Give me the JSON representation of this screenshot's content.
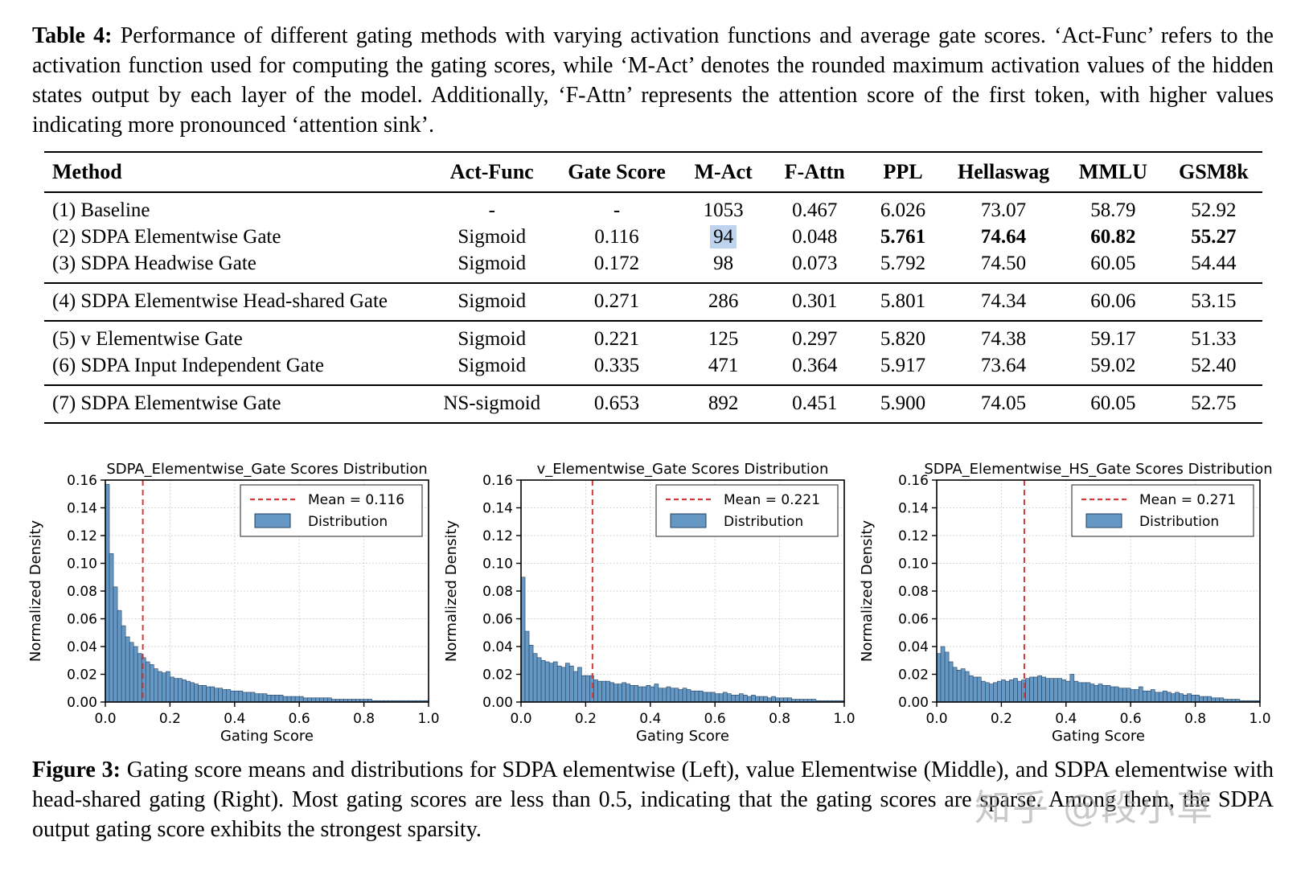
{
  "table_caption": {
    "label": "Table 4:",
    "text": " Performance of different gating methods with varying activation functions and average gate scores. ‘Act-Func’ refers to the activation function used for computing the gating scores, while ‘M-Act’ denotes the rounded maximum activation values of the hidden states output by each layer of the model. Additionally, ‘F-Attn’ represents the attention score of the first token, with higher values indicating more pronounced ‘attention sink’."
  },
  "table": {
    "headers": [
      "Method",
      "Act-Func",
      "Gate Score",
      "M-Act",
      "F-Attn",
      "PPL",
      "Hellaswag",
      "MMLU",
      "GSM8k"
    ],
    "highlight_color": "#bdd3ee",
    "groups": [
      {
        "rows": [
          {
            "cells": [
              "(1) Baseline",
              "-",
              "-",
              "1053",
              "0.467",
              "6.026",
              "73.07",
              "58.79",
              "52.92"
            ]
          },
          {
            "cells": [
              "(2) SDPA Elementwise Gate",
              "Sigmoid",
              "0.116",
              "94",
              "0.048",
              "5.761",
              "74.64",
              "60.82",
              "55.27"
            ],
            "bold": [
              5,
              6,
              7,
              8
            ],
            "highlight": [
              3
            ]
          },
          {
            "cells": [
              "(3) SDPA Headwise Gate",
              "Sigmoid",
              "0.172",
              "98",
              "0.073",
              "5.792",
              "74.50",
              "60.05",
              "54.44"
            ]
          }
        ]
      },
      {
        "rows": [
          {
            "cells": [
              "(4) SDPA Elementwise Head-shared Gate",
              "Sigmoid",
              "0.271",
              "286",
              "0.301",
              "5.801",
              "74.34",
              "60.06",
              "53.15"
            ]
          }
        ]
      },
      {
        "rows": [
          {
            "cells": [
              "(5) v Elementwise Gate",
              "Sigmoid",
              "0.221",
              "125",
              "0.297",
              "5.820",
              "74.38",
              "59.17",
              "51.33"
            ]
          },
          {
            "cells": [
              "(6) SDPA Input Independent Gate",
              "Sigmoid",
              "0.335",
              "471",
              "0.364",
              "5.917",
              "73.64",
              "59.02",
              "52.40"
            ]
          }
        ]
      },
      {
        "rows": [
          {
            "cells": [
              "(7) SDPA Elementwise Gate",
              "NS-sigmoid",
              "0.653",
              "892",
              "0.451",
              "5.900",
              "74.05",
              "60.05",
              "52.75"
            ]
          }
        ]
      }
    ]
  },
  "chart_style": {
    "bar_fill": "#6598c5",
    "bar_edge": "#23415f",
    "mean_line_color": "#d23b3b",
    "grid_color": "#c9c9c9",
    "frame_color": "#000000"
  },
  "chart_data": [
    {
      "type": "bar",
      "title": "SDPA_Elementwise_Gate Scores Distribution",
      "xlabel": "Gating Score",
      "ylabel": "Normalized Density",
      "xlim": [
        0,
        1
      ],
      "ylim": [
        0,
        0.16
      ],
      "xticks": [
        "0.0",
        "0.2",
        "0.4",
        "0.6",
        "0.8",
        "1.0"
      ],
      "yticks": [
        "0.00",
        "0.02",
        "0.04",
        "0.06",
        "0.08",
        "0.10",
        "0.12",
        "0.14",
        "0.16"
      ],
      "mean": 0.116,
      "legend": {
        "mean_label": "Mean = 0.116",
        "distribution_label": "Distribution",
        "position": "upper right"
      },
      "bin_start": 0,
      "bin_width": 0.0125,
      "values": [
        0.157,
        0.107,
        0.083,
        0.066,
        0.055,
        0.047,
        0.043,
        0.04,
        0.035,
        0.032,
        0.029,
        0.027,
        0.024,
        0.022,
        0.021,
        0.022,
        0.018,
        0.017,
        0.017,
        0.016,
        0.015,
        0.014,
        0.013,
        0.012,
        0.012,
        0.011,
        0.011,
        0.01,
        0.01,
        0.009,
        0.009,
        0.008,
        0.008,
        0.008,
        0.007,
        0.007,
        0.007,
        0.006,
        0.006,
        0.006,
        0.005,
        0.005,
        0.005,
        0.005,
        0.004,
        0.004,
        0.004,
        0.004,
        0.004,
        0.003,
        0.003,
        0.003,
        0.003,
        0.003,
        0.003,
        0.003,
        0.002,
        0.002,
        0.002,
        0.002,
        0.002,
        0.002,
        0.002,
        0.002,
        0.002,
        0.002,
        0.001,
        0.001,
        0.001,
        0.001,
        0.001,
        0.001,
        0.001,
        0.001,
        0.001,
        0.001,
        0.001,
        0.001,
        0.001,
        0.001
      ]
    },
    {
      "type": "bar",
      "title": "v_Elementwise_Gate Scores Distribution",
      "xlabel": "Gating Score",
      "ylabel": "Normalized Density",
      "xlim": [
        0,
        1
      ],
      "ylim": [
        0,
        0.16
      ],
      "xticks": [
        "0.0",
        "0.2",
        "0.4",
        "0.6",
        "0.8",
        "1.0"
      ],
      "yticks": [
        "0.00",
        "0.02",
        "0.04",
        "0.06",
        "0.08",
        "0.10",
        "0.12",
        "0.14",
        "0.16"
      ],
      "mean": 0.221,
      "legend": {
        "mean_label": "Mean = 0.221",
        "distribution_label": "Distribution",
        "position": "upper right"
      },
      "bin_start": 0,
      "bin_width": 0.0125,
      "values": [
        0.09,
        0.051,
        0.041,
        0.035,
        0.032,
        0.03,
        0.029,
        0.028,
        0.029,
        0.026,
        0.025,
        0.028,
        0.026,
        0.022,
        0.025,
        0.019,
        0.019,
        0.019,
        0.016,
        0.015,
        0.015,
        0.015,
        0.014,
        0.013,
        0.013,
        0.014,
        0.013,
        0.012,
        0.012,
        0.011,
        0.011,
        0.012,
        0.011,
        0.013,
        0.01,
        0.01,
        0.011,
        0.01,
        0.01,
        0.009,
        0.01,
        0.009,
        0.008,
        0.008,
        0.008,
        0.007,
        0.007,
        0.007,
        0.006,
        0.006,
        0.007,
        0.006,
        0.005,
        0.005,
        0.006,
        0.005,
        0.004,
        0.005,
        0.004,
        0.004,
        0.004,
        0.003,
        0.004,
        0.003,
        0.003,
        0.003,
        0.003,
        0.002,
        0.002,
        0.002,
        0.002,
        0.002,
        0.002,
        0.001,
        0.001,
        0.001,
        0.001,
        0.001,
        0.001,
        0.001
      ]
    },
    {
      "type": "bar",
      "title": "SDPA_Elementwise_HS_Gate Scores Distribution",
      "xlabel": "Gating Score",
      "ylabel": "Normalized Density",
      "xlim": [
        0,
        1
      ],
      "ylim": [
        0,
        0.16
      ],
      "xticks": [
        "0.0",
        "0.2",
        "0.4",
        "0.6",
        "0.8",
        "1.0"
      ],
      "yticks": [
        "0.00",
        "0.02",
        "0.04",
        "0.06",
        "0.08",
        "0.10",
        "0.12",
        "0.14",
        "0.16"
      ],
      "mean": 0.271,
      "legend": {
        "mean_label": "Mean = 0.271",
        "distribution_label": "Distribution",
        "position": "upper right"
      },
      "bin_start": 0,
      "bin_width": 0.0125,
      "values": [
        0.035,
        0.04,
        0.036,
        0.029,
        0.025,
        0.023,
        0.024,
        0.022,
        0.019,
        0.018,
        0.018,
        0.015,
        0.014,
        0.013,
        0.014,
        0.015,
        0.016,
        0.015,
        0.016,
        0.017,
        0.015,
        0.016,
        0.017,
        0.018,
        0.018,
        0.019,
        0.018,
        0.017,
        0.017,
        0.017,
        0.017,
        0.016,
        0.015,
        0.02,
        0.015,
        0.014,
        0.014,
        0.014,
        0.013,
        0.012,
        0.013,
        0.012,
        0.012,
        0.011,
        0.011,
        0.01,
        0.01,
        0.01,
        0.009,
        0.009,
        0.011,
        0.008,
        0.008,
        0.009,
        0.007,
        0.007,
        0.008,
        0.007,
        0.006,
        0.007,
        0.006,
        0.005,
        0.006,
        0.005,
        0.005,
        0.004,
        0.004,
        0.004,
        0.003,
        0.003,
        0.003,
        0.002,
        0.002,
        0.002,
        0.002,
        0.001,
        0.001,
        0.001,
        0.001,
        0.001
      ]
    }
  ],
  "figure_caption": {
    "label": "Figure 3:",
    "text": " Gating score means and distributions for SDPA elementwise (Left), value Elementwise (Middle), and SDPA elementwise with head-shared gating (Right). Most gating scores are less than 0.5, indicating that the gating scores are sparse. Among them, the SDPA output gating score exhibits the strongest sparsity."
  },
  "watermark": {
    "text": "知乎 @段小草"
  }
}
